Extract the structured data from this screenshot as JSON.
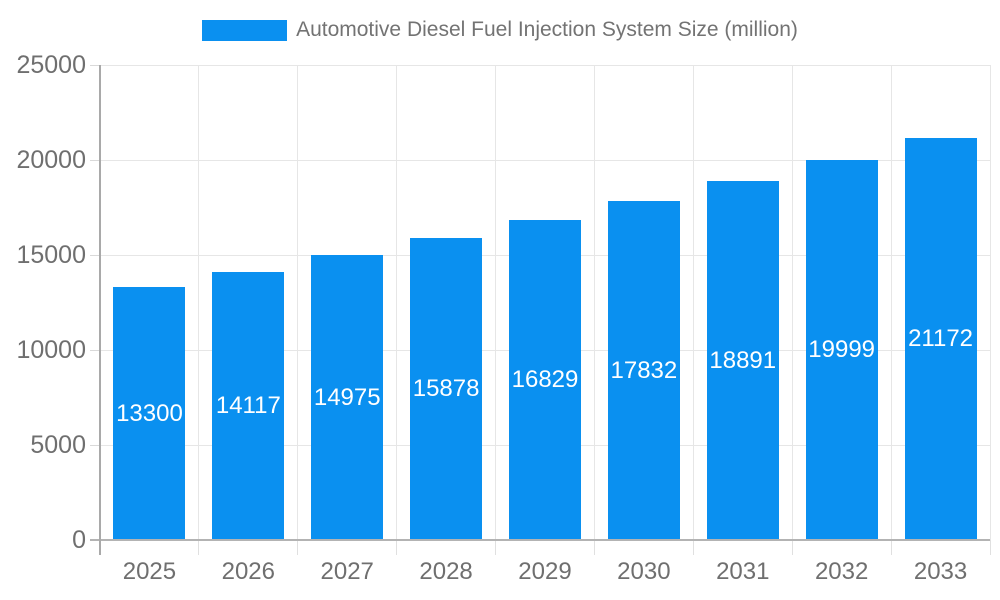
{
  "legend": {
    "label": "Automotive Diesel Fuel Injection System Size (million)"
  },
  "chart_data": {
    "type": "bar",
    "title": "Automotive Diesel Fuel Injection System Size (million)",
    "categories": [
      "2025",
      "2026",
      "2027",
      "2028",
      "2029",
      "2030",
      "2031",
      "2032",
      "2033"
    ],
    "values": [
      13300,
      14117,
      14975,
      15878,
      16829,
      17832,
      18891,
      19999,
      21172
    ],
    "xlabel": "",
    "ylabel": "",
    "ylim": [
      0,
      25000
    ],
    "yticks": [
      0,
      5000,
      10000,
      15000,
      20000,
      25000
    ],
    "grid": true,
    "legend_position": "top-center",
    "bar_labels_inside": "middle"
  },
  "colors": {
    "bar": "#0a90f0",
    "grid": "#e6e6e6",
    "axis": "#b3b3b3",
    "tick_text": "#6f6f6f",
    "title_text": "#737373",
    "value_label": "#ffffff",
    "background": "#ffffff"
  }
}
